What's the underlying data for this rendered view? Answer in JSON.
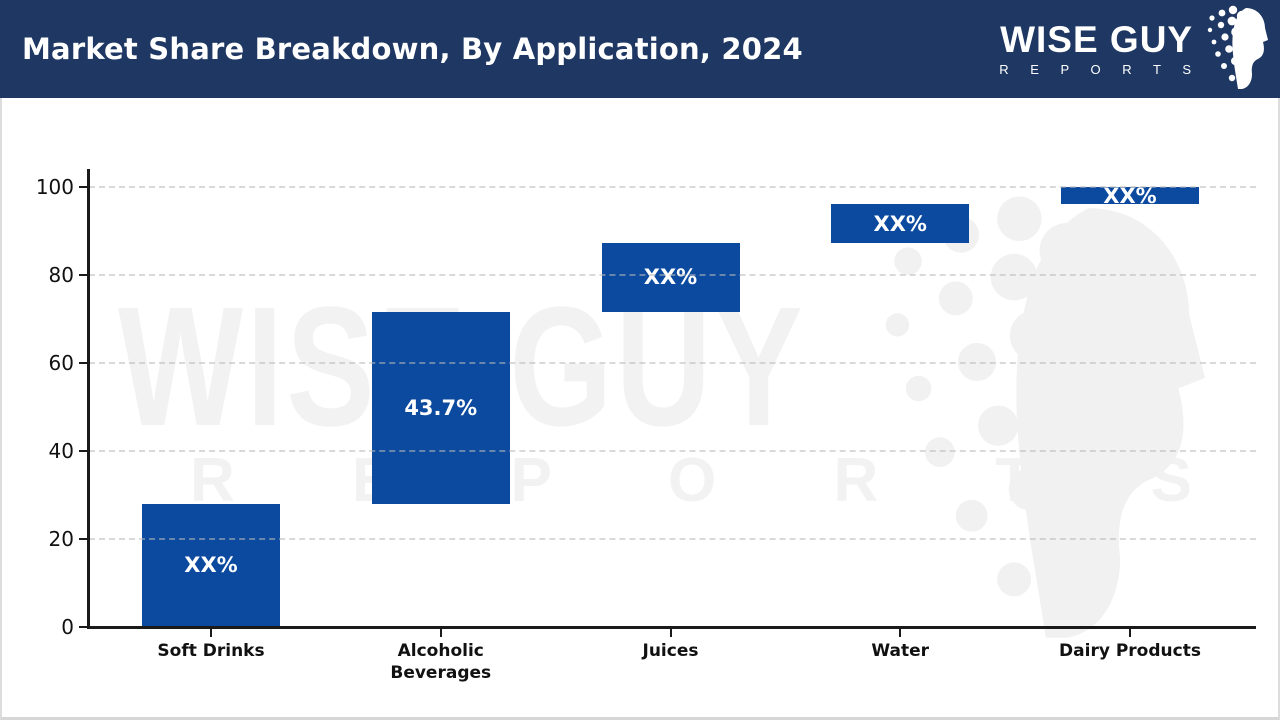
{
  "header": {
    "title": "Market Share Breakdown, By Application, 2024",
    "logo": {
      "line1": "WISE GUY",
      "line2": "R E P O R T S",
      "icon": "head-profile-dots-icon"
    }
  },
  "watermark": {
    "line1": "WISE GUY",
    "line2": "R E P O R T S",
    "icon": "head-profile-dots-watermark"
  },
  "colors": {
    "header_bg": "#1F3763",
    "bar_fill": "#0B4A9F",
    "bar_label_text": "#ffffff",
    "grid_line": "#d9d9d9",
    "axis_line": "#1a1a1a",
    "watermark": "#f2f2f2",
    "title_text": "#ffffff"
  },
  "chart_data": {
    "type": "bar",
    "subtype": "waterfall",
    "title": "Market Share Breakdown, By Application, 2024",
    "xlabel": "",
    "ylabel": "",
    "categories": [
      "Soft Drinks",
      "Alcoholic Beverages",
      "Juices",
      "Water",
      "Dairy Products"
    ],
    "segments": [
      {
        "category": "Soft Drinks",
        "start": 0,
        "end": 28.0,
        "value": 28.0,
        "label": "XX%"
      },
      {
        "category": "Alcoholic Beverages",
        "start": 28.0,
        "end": 71.7,
        "value": 43.7,
        "label": "43.7%"
      },
      {
        "category": "Juices",
        "start": 71.7,
        "end": 87.3,
        "value": 15.6,
        "label": "XX%"
      },
      {
        "category": "Water",
        "start": 87.3,
        "end": 96.1,
        "value": 8.8,
        "label": "XX%"
      },
      {
        "category": "Dairy Products",
        "start": 96.1,
        "end": 100.0,
        "value": 3.9,
        "label": "XX%"
      }
    ],
    "yticks": [
      0,
      20,
      40,
      60,
      80,
      100
    ],
    "ylim": [
      0,
      104
    ],
    "grid": "horizontal-dashed",
    "legend": "none"
  }
}
